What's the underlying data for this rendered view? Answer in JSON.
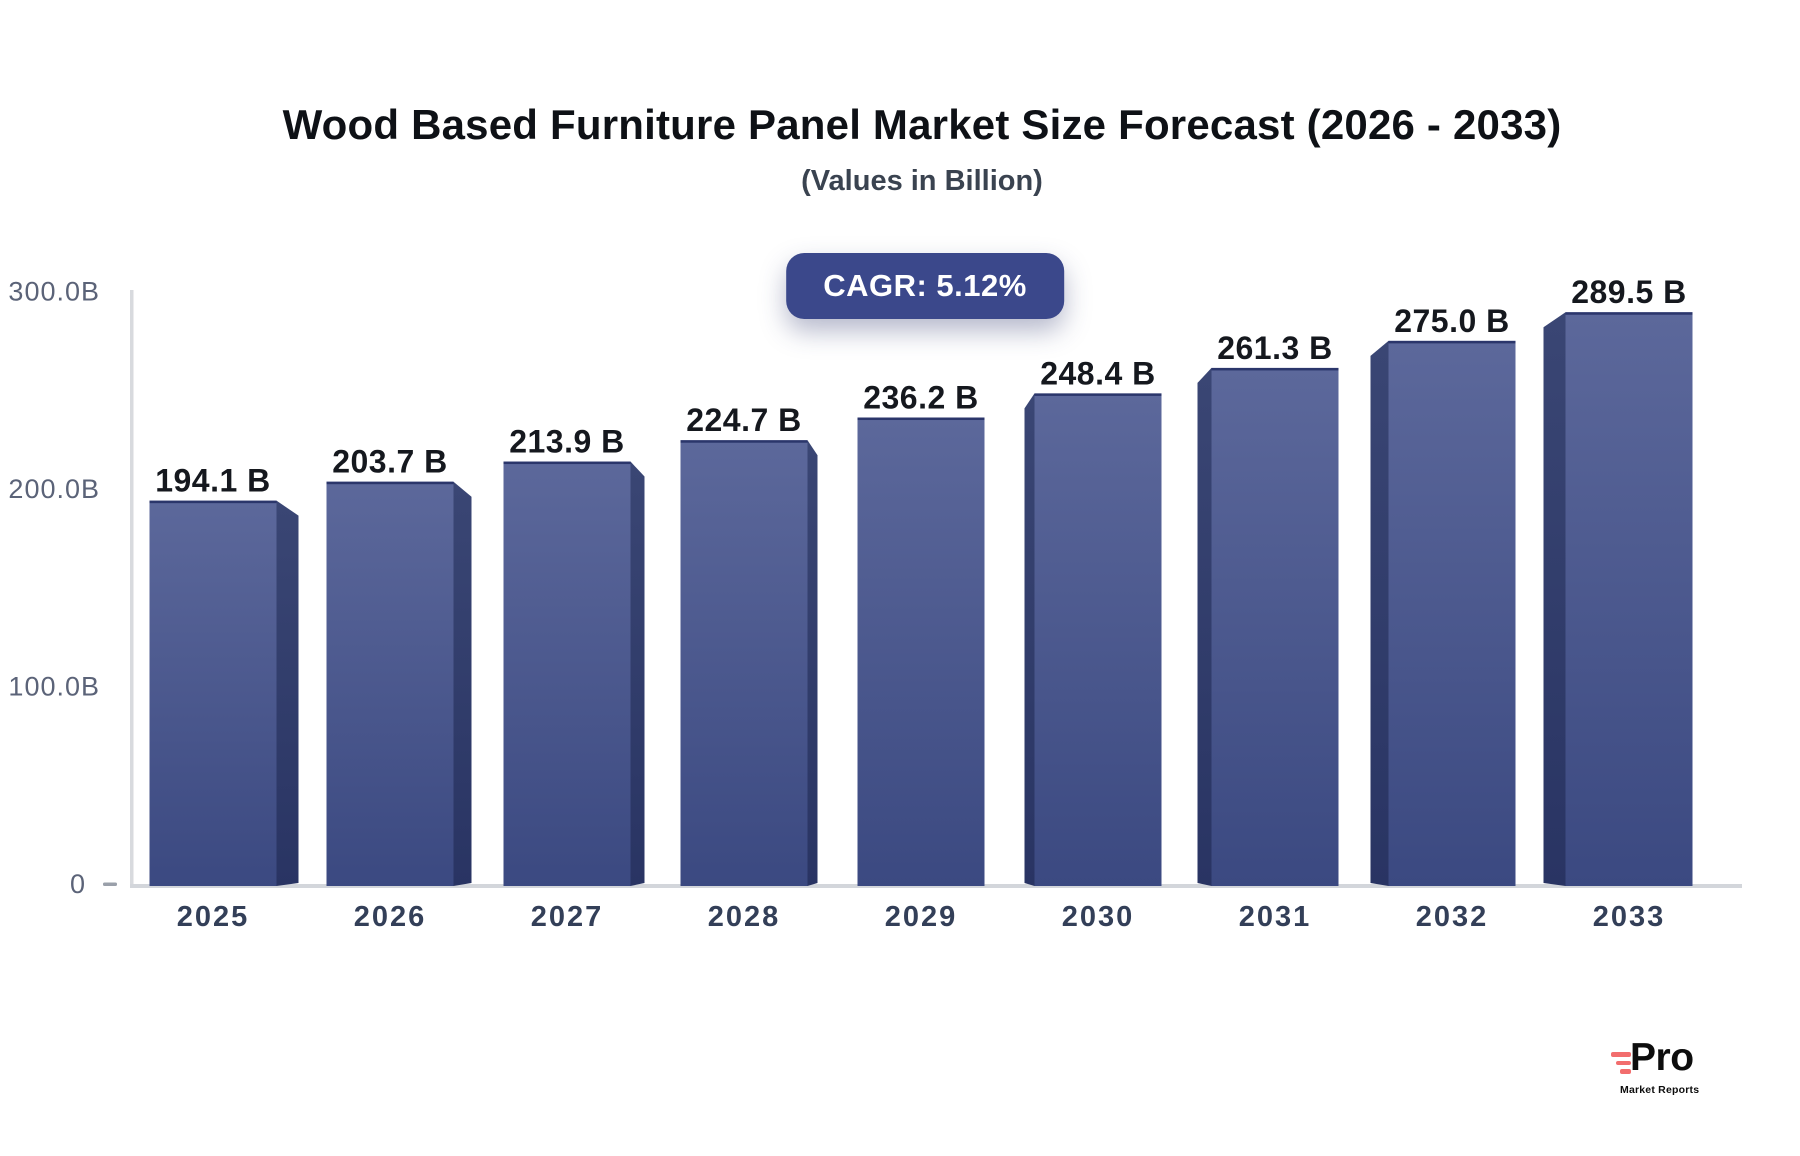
{
  "header": {
    "title": "Wood Based Furniture Panel Market Size Forecast (2026 - 2033)",
    "subtitle": "(Values in Billion)",
    "cagr_badge": "CAGR: 5.12%",
    "cagr_value_pct": 5.12,
    "cagr_bg": "#3b488b",
    "title_color": "#0e1116",
    "subtitle_color": "#3a4350"
  },
  "chart_data": {
    "type": "bar",
    "title": "Wood Based Furniture Panel Market Size Forecast (2026 - 2033)",
    "subtitle": "(Values in Billion)",
    "unit": "Billion",
    "categories": [
      "2025",
      "2026",
      "2027",
      "2028",
      "2029",
      "2030",
      "2031",
      "2032",
      "2033"
    ],
    "values": [
      194.1,
      203.7,
      213.9,
      224.7,
      236.2,
      248.4,
      261.3,
      275.0,
      289.5
    ],
    "bar_labels": [
      "194.1 B",
      "203.7 B",
      "213.9 B",
      "224.7 B",
      "236.2 B",
      "248.4 B",
      "261.3 B",
      "275.0 B",
      "289.5 B"
    ],
    "y_axis": {
      "range": [
        0,
        300
      ],
      "ticks": [
        {
          "value": 0,
          "label": "0"
        },
        {
          "value": 100,
          "label": "100.0B"
        },
        {
          "value": 200,
          "label": "200.0B"
        },
        {
          "value": 300,
          "label": "300.0B"
        }
      ]
    },
    "grid": false,
    "legend": false,
    "style": {
      "front_gradient_top": "#5c689b",
      "front_gradient_bottom": "#3b4981",
      "side_gradient_top": "#3a4674",
      "side_gradient_bottom": "#293463",
      "top_edge_color": "#2b366b",
      "axis_line_color": "#d8dade",
      "baseline_color": "#d3d6db",
      "zero_dash_color": "#9aa0aa",
      "tick_label_color": "#5b6378",
      "category_label_color": "#333f58",
      "value_label_color": "#15181e"
    }
  },
  "branding": {
    "logo_text": "Pro",
    "logo_subtext": "Market Reports",
    "logo_accent": "#f26d6d",
    "logo_text_color": "#0d0d0d"
  }
}
